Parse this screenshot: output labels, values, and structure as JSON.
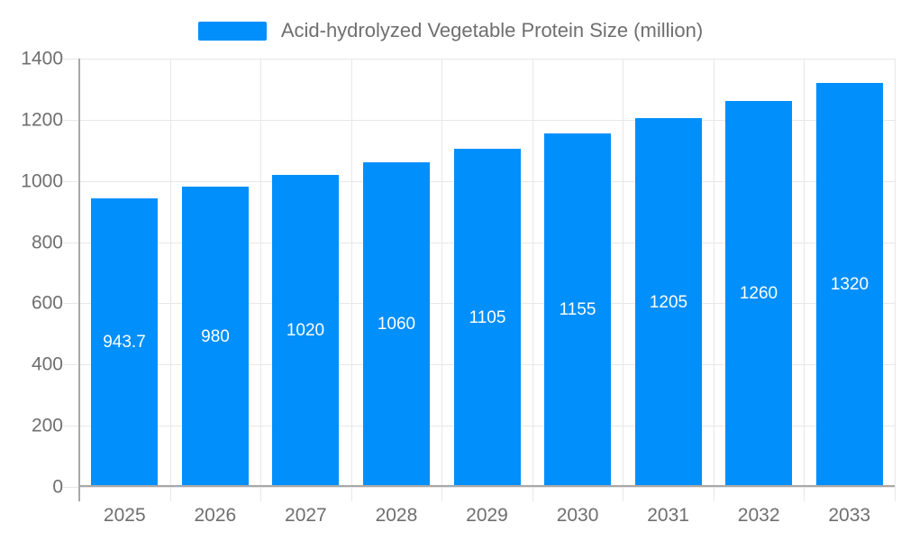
{
  "chart_data": {
    "type": "bar",
    "title": "Acid-hydrolyzed Vegetable Protein Size (million)",
    "categories": [
      "2025",
      "2026",
      "2027",
      "2028",
      "2029",
      "2030",
      "2031",
      "2032",
      "2033"
    ],
    "series": [
      {
        "name": "Acid-hydrolyzed Vegetable Protein Size (million)",
        "values": [
          943.7,
          980,
          1020,
          1060,
          1105,
          1155,
          1205,
          1260,
          1320
        ]
      }
    ],
    "data_labels": [
      "943.7",
      "980",
      "1020",
      "1060",
      "1105",
      "1155",
      "1205",
      "1260",
      "1320"
    ],
    "xlabel": "",
    "ylabel": "",
    "ylim": [
      0,
      1400
    ],
    "ytick_step": 200,
    "yticks": [
      0,
      200,
      400,
      600,
      800,
      1000,
      1200,
      1400
    ],
    "grid": true,
    "legend_position": "top",
    "colors": {
      "bar": "#008FFB",
      "gridline": "#e7e7e7",
      "axis_line": "#a8a8a8",
      "axis_label_text": "#6f6f6f",
      "legend_text": "#6f6f6f",
      "data_label_text": "#ffffff",
      "background": "#ffffff"
    }
  }
}
